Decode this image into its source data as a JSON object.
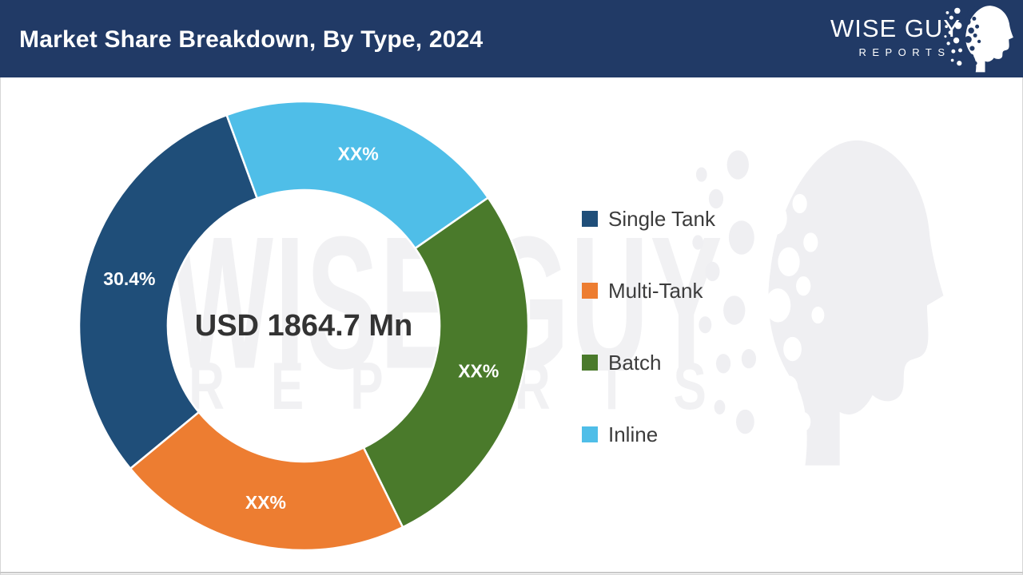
{
  "header": {
    "title": "Market Share Breakdown, By Type, 2024",
    "bg_color": "#213A66"
  },
  "logo": {
    "line1": "WISE GUY",
    "line2": "REPORTS",
    "icon": "dotted-head-profile",
    "text_color": "#ffffff"
  },
  "watermark": {
    "line1": "WISE GUY",
    "line2": "REPORTS",
    "icon": "dotted-head-profile",
    "color": "#f1f1f3"
  },
  "chart_data": {
    "type": "pie",
    "subtype": "donut",
    "title": "Market Share Breakdown, By Type, 2024",
    "center_label": "USD 1864.7 Mn",
    "units": "percent of market share",
    "segments": [
      {
        "name": "Single Tank",
        "value": 30.4,
        "label": "30.4%",
        "color": "#1F4E79"
      },
      {
        "name": "Multi-Tank",
        "value": 21.3,
        "label": "XX%",
        "color": "#ED7D31"
      },
      {
        "name": "Batch",
        "value": 27.4,
        "label": "XX%",
        "color": "#4A7A2B"
      },
      {
        "name": "Inline",
        "value": 20.9,
        "label": "XX%",
        "color": "#4FBEE8"
      }
    ],
    "draw_order": [
      "Single Tank",
      "Inline",
      "Batch",
      "Multi-Tank"
    ],
    "start_angle_deg": 230.5,
    "outer_radius_px": 281,
    "inner_radius_px": 170,
    "segment_gap_color": "#ffffff",
    "legend_position": "right"
  }
}
